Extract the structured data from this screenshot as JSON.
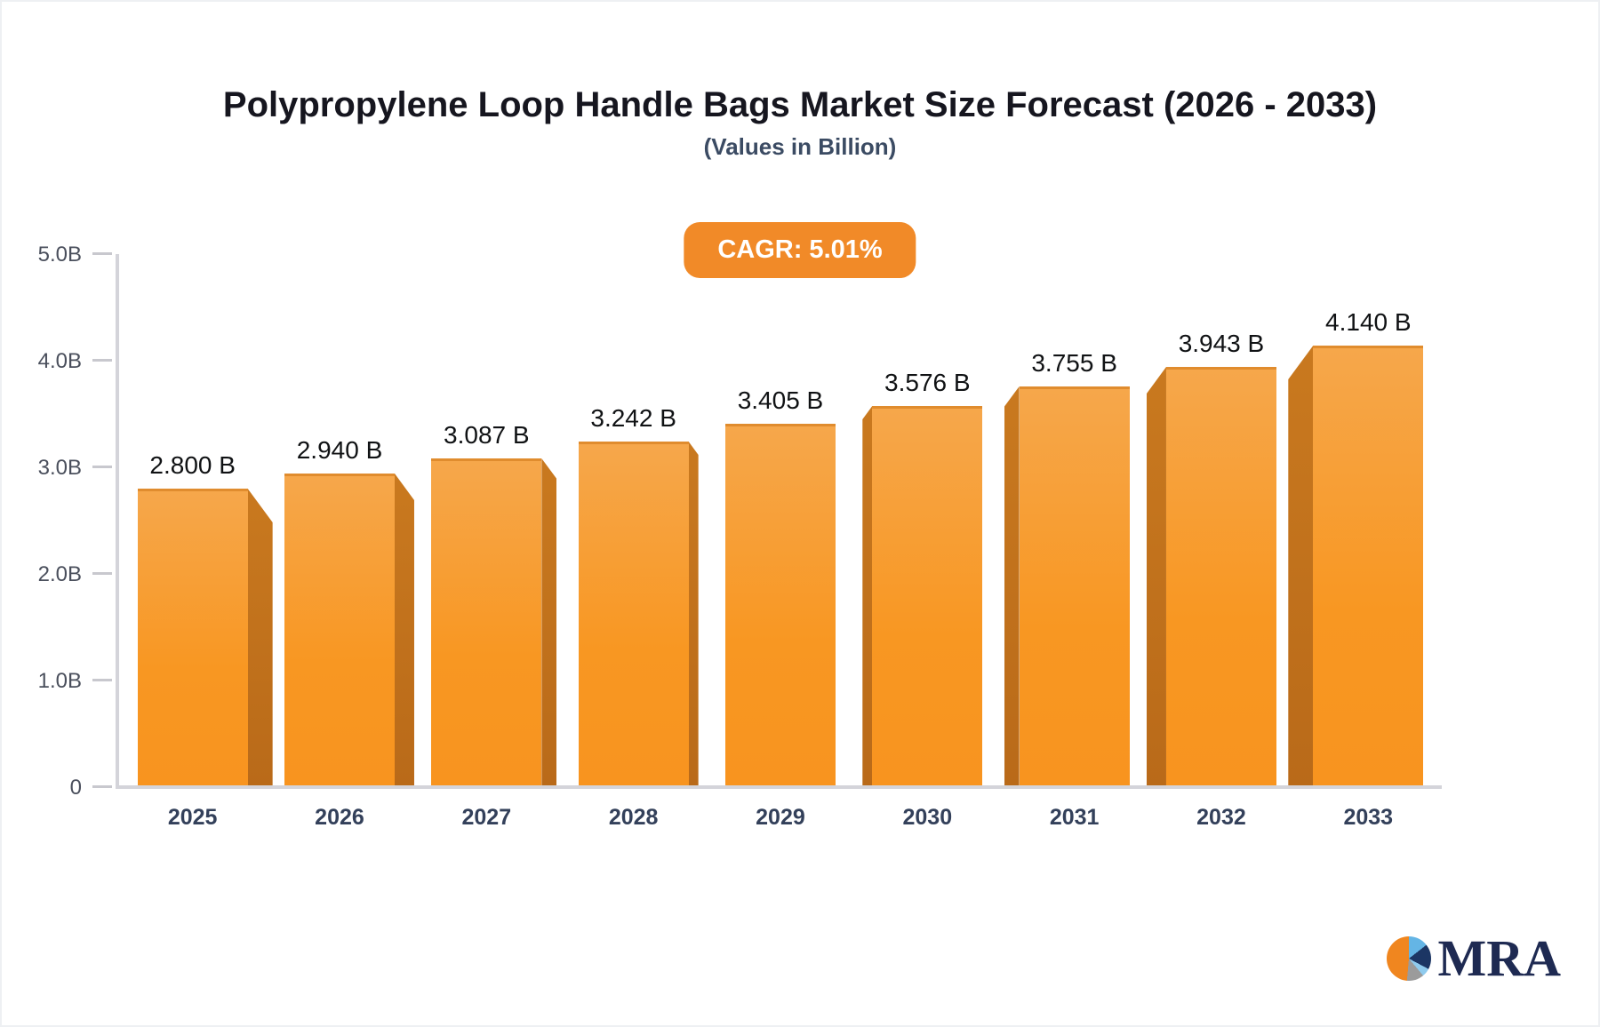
{
  "header": {
    "title": "Polypropylene Loop Handle Bags Market Size Forecast (2026 - 2033)",
    "subtitle": "(Values in Billion)",
    "cagr_badge": "CAGR: 5.01%"
  },
  "chart_data": {
    "type": "bar",
    "title": "Polypropylene Loop Handle Bags Market Size Forecast (2026 - 2033)",
    "subtitle": "(Values in Billion)",
    "cagr_percent": 5.01,
    "categories": [
      "2025",
      "2026",
      "2027",
      "2028",
      "2029",
      "2030",
      "2031",
      "2032",
      "2033"
    ],
    "values": [
      2.8,
      2.94,
      3.087,
      3.242,
      3.405,
      3.576,
      3.755,
      3.943,
      4.14
    ],
    "value_labels": [
      "2.800 B",
      "2.940 B",
      "3.087 B",
      "3.242 B",
      "3.405 B",
      "3.576 B",
      "3.755 B",
      "3.943 B",
      "4.140 B"
    ],
    "xlabel": "",
    "ylabel": "",
    "ylim": [
      0,
      5
    ],
    "yticks": [
      {
        "label": "5.0B",
        "value": 5.0
      },
      {
        "label": "4.0B",
        "value": 4.0
      },
      {
        "label": "3.0B",
        "value": 3.0
      },
      {
        "label": "2.0B",
        "value": 2.0
      },
      {
        "label": "1.0B",
        "value": 1.0
      },
      {
        "label": "0",
        "value": 0
      }
    ],
    "grid": false,
    "legend": false,
    "bar_style": "3d-perspective-orange"
  },
  "colors": {
    "badge_bg": "#f18a28",
    "bar_face_top": "#f6a74b",
    "bar_face_bottom": "#f8941f",
    "bar_side": "#b96a19",
    "axis_line": "#d4d4da",
    "title_text": "#16161f",
    "subtitle_text": "#3b4b63",
    "tick_text": "#4a4f5c",
    "year_text": "#33405a",
    "value_text": "#101214"
  },
  "logo": {
    "text": "MRA",
    "icon": "pie-chart-icon",
    "pie_colors": [
      "#f0861f",
      "#64b5e5",
      "#1c3664",
      "#9b9b9b",
      "#8fcbee"
    ]
  }
}
